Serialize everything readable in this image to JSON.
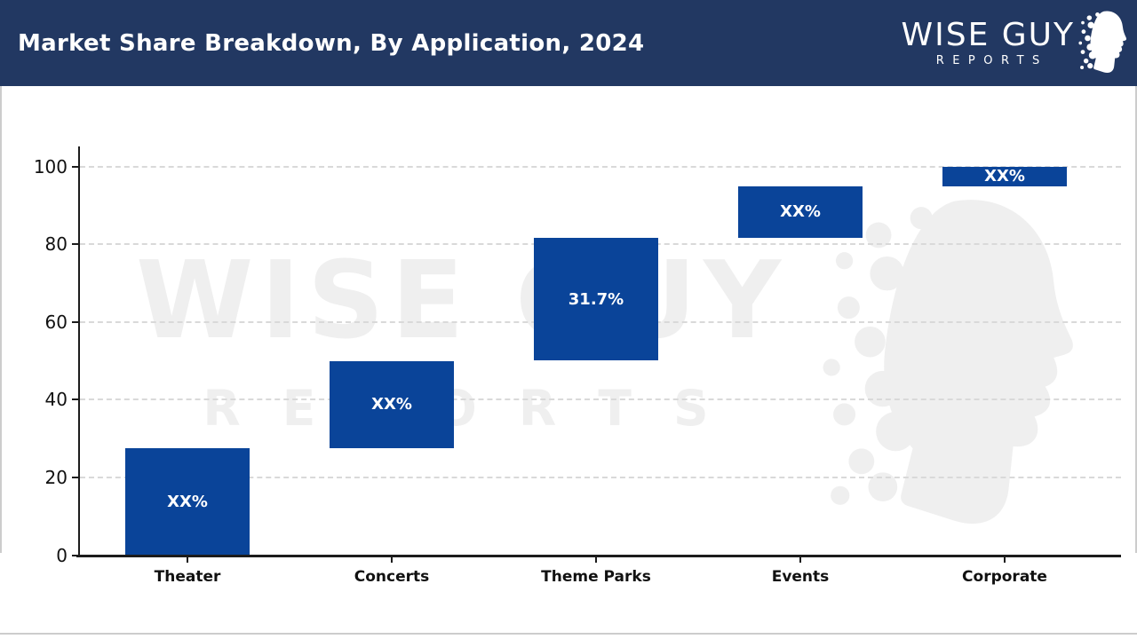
{
  "header": {
    "title": "Market Share Breakdown, By Application, 2024",
    "logo": {
      "line1": "WISE GUY",
      "line2": "REPORTS"
    }
  },
  "watermark": {
    "line1": "WISE GUY",
    "line2": "REPORTS"
  },
  "colors": {
    "header_bg": "#223862",
    "bar": "#0A4499",
    "grid": "#D9D9D9",
    "axis": "#1C1C1C",
    "watermark": "#EFEFEF",
    "bar_label": "#FFFFFF"
  },
  "chart_data": {
    "type": "bar",
    "subtype": "floating-waterfall",
    "title": "Market Share Breakdown, By Application, 2024",
    "categories": [
      "Theater",
      "Concerts",
      "Theme Parks",
      "Events",
      "Corporate"
    ],
    "segments": [
      {
        "category": "Theater",
        "start": 0,
        "end": 27.5,
        "label": "XX%"
      },
      {
        "category": "Concerts",
        "start": 27.5,
        "end": 50,
        "label": "XX%"
      },
      {
        "category": "Theme Parks",
        "start": 50,
        "end": 81.7,
        "label": "31.7%"
      },
      {
        "category": "Events",
        "start": 81.7,
        "end": 94.8,
        "label": "XX%"
      },
      {
        "category": "Corporate",
        "start": 94.8,
        "end": 100,
        "label": "XX%"
      }
    ],
    "yticks": [
      0,
      20,
      40,
      60,
      80,
      100
    ],
    "ylim": [
      0,
      105
    ],
    "xlabel": "",
    "ylabel": "",
    "legend": "none",
    "grid": "horizontal-dashed"
  }
}
